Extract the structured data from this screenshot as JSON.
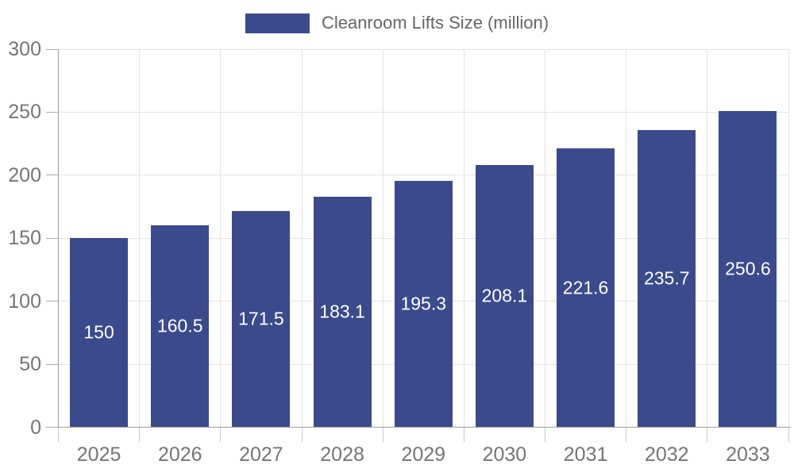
{
  "legend": {
    "label": "Cleanroom Lifts Size (million)"
  },
  "colors": {
    "bar": "#3A4A8C",
    "axis": "#9e9e9e",
    "grid": "#e3e3e3",
    "y_tick": "#aaaaaa",
    "x_tick": "#c9c9c9",
    "tick_label": "#757575",
    "legend_text": "#666666",
    "value_label": "#ffffff",
    "background": "#ffffff"
  },
  "chart_data": {
    "type": "bar",
    "title": "",
    "xlabel": "",
    "ylabel": "",
    "categories": [
      "2025",
      "2026",
      "2027",
      "2028",
      "2029",
      "2030",
      "2031",
      "2032",
      "2033"
    ],
    "values": [
      150,
      160.5,
      171.5,
      183.1,
      195.3,
      208.1,
      221.6,
      235.7,
      250.6
    ],
    "value_labels": [
      "150",
      "160.5",
      "171.5",
      "183.1",
      "195.3",
      "208.1",
      "221.6",
      "235.7",
      "250.6"
    ],
    "series_name": "Cleanroom Lifts Size (million)",
    "ylim": [
      0,
      300
    ],
    "yticks": [
      0,
      50,
      100,
      150,
      200,
      250,
      300
    ],
    "grid": true,
    "legend_position": "top-center",
    "bar_label_position": "inside-center"
  }
}
